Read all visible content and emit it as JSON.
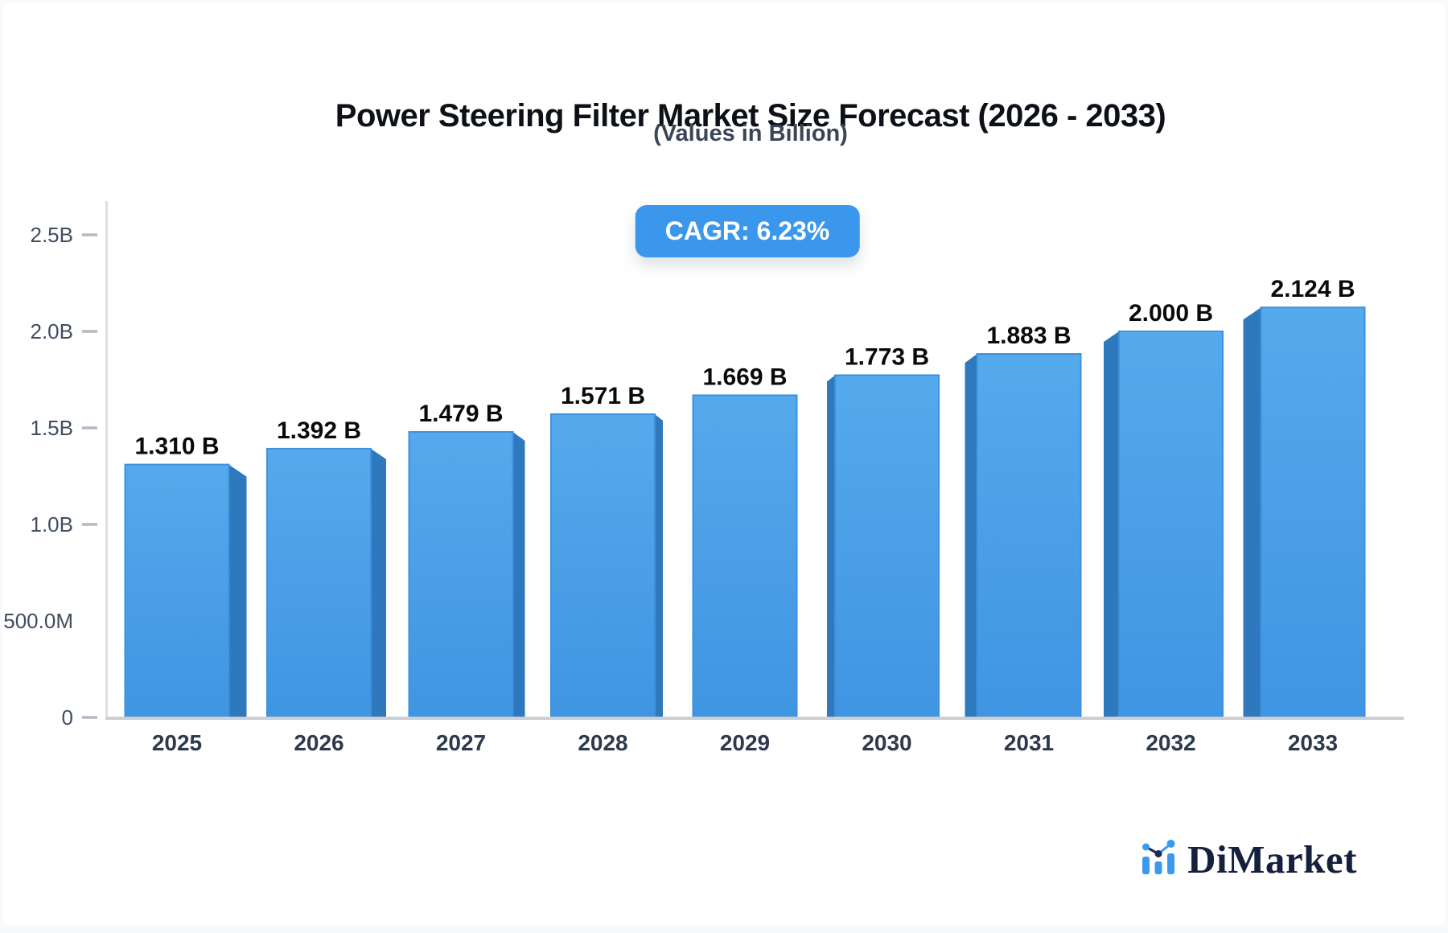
{
  "title": "Power Steering Filter Market Size Forecast (2026 - 2033)",
  "subtitle": "(Values in Billion)",
  "cagr_badge": "CAGR: 6.23%",
  "logo": {
    "name": "DiMarket",
    "icon": "bar-chart-trend-icon"
  },
  "colors": {
    "bar_face_top": "#55a9ec",
    "bar_face_bottom": "#4095e2",
    "bar_border": "#3e91de",
    "bar_side": "#2e79bd",
    "badge_bg": "#3b97ec",
    "accent_blue": "#3b9aed",
    "logo_navy": "#1d2b50",
    "axis_line": "#dcdfe3",
    "baseline": "#ccd0d5",
    "tick_dash": "#b3bac1"
  },
  "chart_data": {
    "type": "bar",
    "title": "Power Steering Filter Market Size Forecast (2026 - 2033)",
    "subtitle": "(Values in Billion)",
    "categories": [
      "2025",
      "2026",
      "2027",
      "2028",
      "2029",
      "2030",
      "2031",
      "2032",
      "2033"
    ],
    "values": [
      1.31,
      1.392,
      1.479,
      1.571,
      1.669,
      1.773,
      1.883,
      2.0,
      2.124
    ],
    "value_labels": [
      "1.310 B",
      "1.392 B",
      "1.479 B",
      "1.571 B",
      "1.669 B",
      "1.773 B",
      "1.883 B",
      "2.000 B",
      "2.124 B"
    ],
    "ylim": [
      0,
      2.5
    ],
    "y_ticks": [
      {
        "label": "2.5B",
        "value": 2.5,
        "dash": true
      },
      {
        "label": "2.0B",
        "value": 2.0,
        "dash": true
      },
      {
        "label": "1.5B",
        "value": 1.5,
        "dash": true
      },
      {
        "label": "1.0B",
        "value": 1.0,
        "dash": true
      },
      {
        "label": "500.0M",
        "value": 0.5,
        "dash": false
      },
      {
        "label": "0",
        "value": 0,
        "dash": true
      }
    ],
    "grid": false,
    "legend": false,
    "annotations": [
      "CAGR: 6.23%"
    ],
    "style": "3d-perspective-bars"
  }
}
